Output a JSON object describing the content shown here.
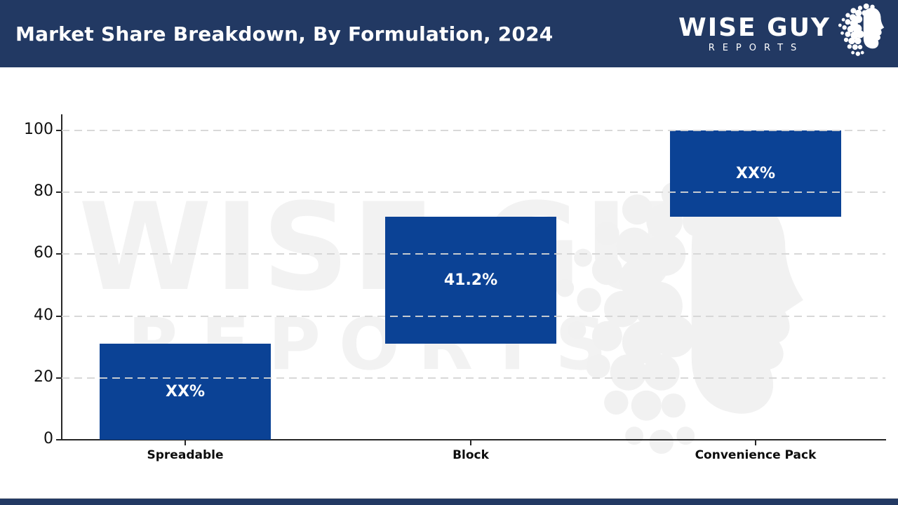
{
  "header": {
    "title": "Market Share Breakdown, By Formulation, 2024",
    "logo": {
      "line1": "WISE GUY",
      "line2": "REPORTS"
    }
  },
  "watermark": {
    "line1": "WISE GUY",
    "line2": "REPORTS"
  },
  "colors": {
    "header_bg": "#223963",
    "footer_bg": "#223963",
    "bar_blue": "#0b4295",
    "grid_gray": "#d5d5d5",
    "axis_dark": "#262626",
    "watermark_gray": "#f2f2f2",
    "text_white": "#ffffff"
  },
  "chart_data": {
    "type": "bar",
    "subtype": "waterfall-segments",
    "title": "Market Share Breakdown, By Formulation, 2024",
    "categories": [
      "Spreadable",
      "Block",
      "Convenience Pack"
    ],
    "segments": [
      {
        "category": "Spreadable",
        "start": 0,
        "end": 31,
        "label": "XX%"
      },
      {
        "category": "Block",
        "start": 31,
        "end": 72.2,
        "label": "41.2%"
      },
      {
        "category": "Convenience Pack",
        "start": 72.2,
        "end": 100,
        "label": "XX%"
      }
    ],
    "yticks": [
      0,
      20,
      40,
      60,
      80,
      100
    ],
    "ylim": [
      0,
      105
    ],
    "xlabel": "",
    "ylabel": "",
    "legend": "none",
    "grid": "horizontal-dashed",
    "bar_color": "#0b4295",
    "bar_label_color": "#ffffff"
  }
}
